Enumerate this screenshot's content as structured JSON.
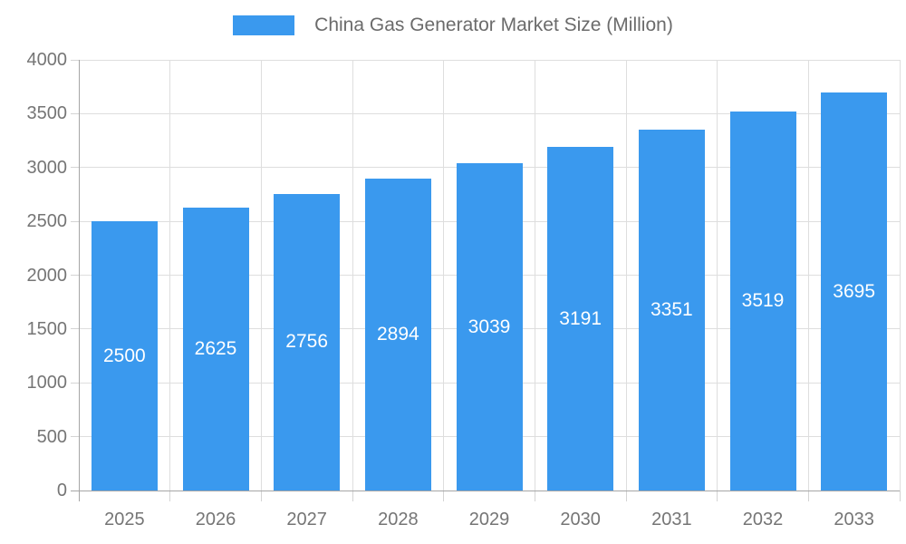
{
  "chart_data": {
    "type": "bar",
    "title": "China Gas Generator Market Size (Million)",
    "categories": [
      "2025",
      "2026",
      "2027",
      "2028",
      "2029",
      "2030",
      "2031",
      "2032",
      "2033"
    ],
    "values": [
      2500,
      2625,
      2756,
      2894,
      3039,
      3191,
      3351,
      3519,
      3695
    ],
    "value_labels": [
      "2500",
      "2625",
      "2756",
      "2894",
      "3039",
      "3191",
      "3351",
      "3519",
      "3695"
    ],
    "y_ticks": [
      0,
      500,
      1000,
      1500,
      2000,
      2500,
      3000,
      3500,
      4000
    ],
    "ylim": [
      0,
      4000
    ],
    "xlabel": "",
    "ylabel": "",
    "grid": true,
    "legend_position": "top"
  },
  "colors": {
    "bar": "#3A99EE",
    "bar_label": "#FFFFFF",
    "grid": "#DEDEDE",
    "tick": "#D4D4D4",
    "axis": "#A6A6A6",
    "tick_text": "#757575",
    "legend_text": "#6B6B6B",
    "background": "#FFFFFF"
  }
}
